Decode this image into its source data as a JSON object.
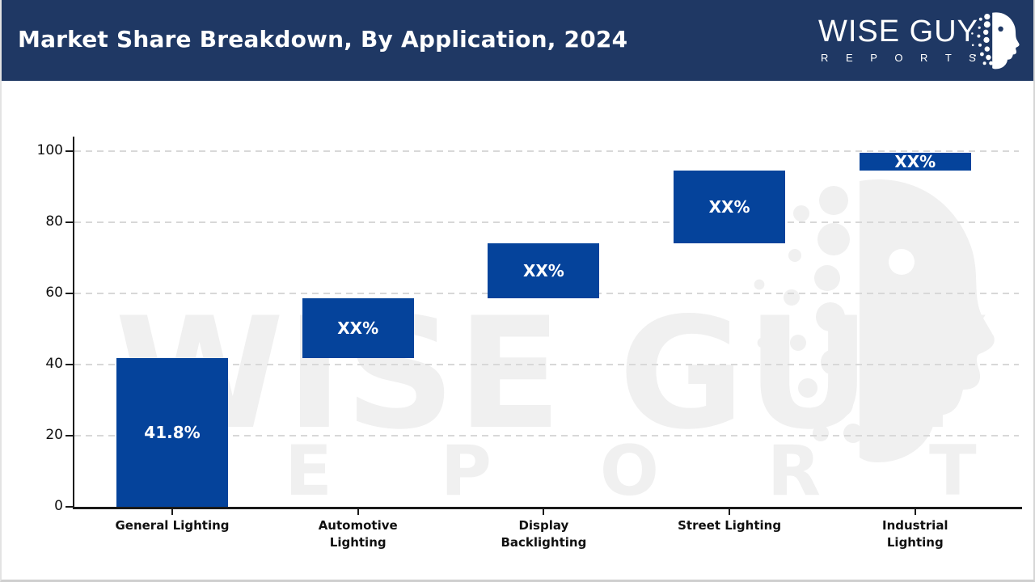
{
  "header": {
    "title": "Market Share Breakdown, By Application, 2024",
    "logo": {
      "line1": "WISE GUY",
      "line2": "R E P O R T S"
    }
  },
  "watermark": {
    "line1": "WISE GUY",
    "line2": "R E P O R T S"
  },
  "chart_data": {
    "type": "bar",
    "subtype": "waterfall",
    "title": "Market Share Breakdown, By Application, 2024",
    "categories": [
      "General Lighting",
      "Automotive Lighting",
      "Display Backlighting",
      "Street Lighting",
      "Industrial Lighting"
    ],
    "category_label_lines": [
      [
        "General Lighting"
      ],
      [
        "Automotive",
        "Lighting"
      ],
      [
        "Display",
        "Backlighting"
      ],
      [
        "Street Lighting"
      ],
      [
        "Industrial",
        "Lighting"
      ]
    ],
    "bars": [
      {
        "category": "General Lighting",
        "from": 0,
        "to": 41.8,
        "label": "41.8%"
      },
      {
        "category": "Automotive Lighting",
        "from": 41.8,
        "to": 58.6,
        "label": "XX%"
      },
      {
        "category": "Display Backlighting",
        "from": 58.6,
        "to": 74.1,
        "label": "XX%"
      },
      {
        "category": "Street Lighting",
        "from": 74.1,
        "to": 94.6,
        "label": "XX%"
      },
      {
        "category": "Industrial Lighting",
        "from": 94.6,
        "to": 99.6,
        "label": "XX%"
      }
    ],
    "xlabel": "",
    "ylabel": "",
    "yticks": [
      0,
      20,
      40,
      60,
      80,
      100
    ],
    "ylim": [
      0,
      104
    ],
    "grid": "horizontal dashed",
    "legend": "none",
    "bar_color": "#05439b",
    "bar_label_color": "#ffffff",
    "header_color": "#1f3864",
    "gridline_color": "#d8d8d8",
    "watermark_color": "#f0f0f0"
  }
}
